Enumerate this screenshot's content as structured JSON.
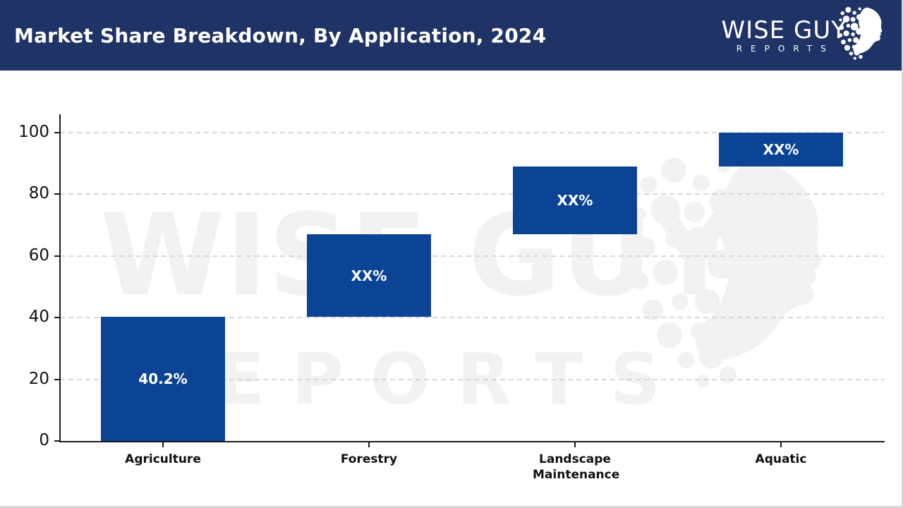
{
  "header": {
    "title": "Market Share Breakdown, By Application, 2024",
    "logo": {
      "line1": "WISE GUY",
      "line2": "REPORTS",
      "face_icon": "face-dots-icon"
    }
  },
  "watermark": {
    "line1": "WISE GUY",
    "line2": "REPORTS"
  },
  "colors": {
    "header_bg": "#1f3366",
    "bar": "#0b4495",
    "bar_label": "#ffffff",
    "grid": "#d7d7d7",
    "axis": "#1a1a1a",
    "watermark": "#f2f2f3"
  },
  "chart_data": {
    "type": "bar",
    "subtype": "waterfall",
    "title": "Market Share Breakdown, By Application, 2024",
    "categories": [
      "Agriculture",
      "Forestry",
      "Landscape Maintenance",
      "Aquatic"
    ],
    "segments": [
      {
        "category": "Agriculture",
        "start": 0,
        "end": 40.2,
        "label": "40.2%"
      },
      {
        "category": "Forestry",
        "start": 40.2,
        "end": 67,
        "label": "XX%"
      },
      {
        "category": "Landscape Maintenance",
        "start": 67,
        "end": 89,
        "label": "XX%"
      },
      {
        "category": "Aquatic",
        "start": 89,
        "end": 100,
        "label": "XX%"
      }
    ],
    "xlabel": "",
    "ylabel": "",
    "ylim": [
      0,
      100
    ],
    "yticks": [
      0,
      20,
      40,
      60,
      80,
      100
    ],
    "grid": "horizontal-dashed",
    "legend": "none"
  }
}
